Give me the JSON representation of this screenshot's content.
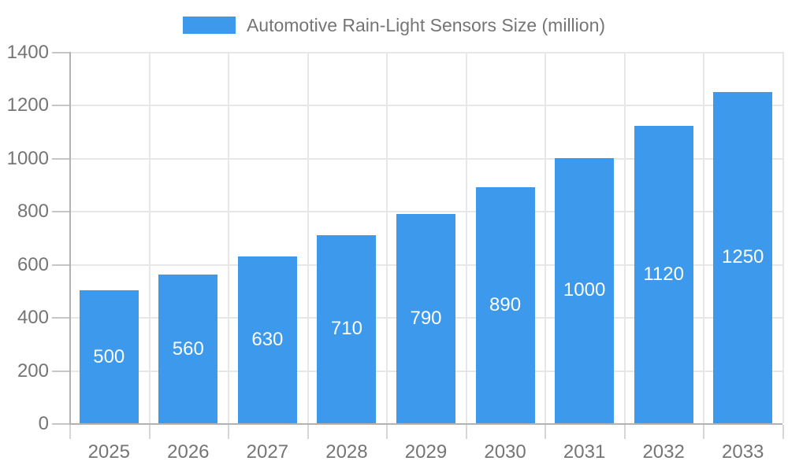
{
  "legend": {
    "label": "Automotive Rain-Light Sensors Size (million)"
  },
  "chart_data": {
    "type": "bar",
    "title": "Automotive Rain-Light Sensors Size (million)",
    "series_name": "Automotive Rain-Light Sensors Size (million)",
    "categories": [
      "2025",
      "2026",
      "2027",
      "2028",
      "2029",
      "2030",
      "2031",
      "2032",
      "2033"
    ],
    "values": [
      500,
      560,
      630,
      710,
      790,
      890,
      1000,
      1120,
      1250
    ],
    "data_labels": [
      "500",
      "560",
      "630",
      "710",
      "790",
      "890",
      "1000",
      "1120",
      "1250"
    ],
    "xlabel": "",
    "ylabel": "",
    "ylim": [
      0,
      1400
    ],
    "ytick_step": 200,
    "yticks": [
      0,
      200,
      400,
      600,
      800,
      1000,
      1200,
      1400
    ],
    "grid": true,
    "legend_position": "top"
  },
  "colors": {
    "bar": "#3c99ec",
    "bar_label_text": "#ffffff",
    "axis_text": "#757575",
    "legend_text": "#757575"
  }
}
